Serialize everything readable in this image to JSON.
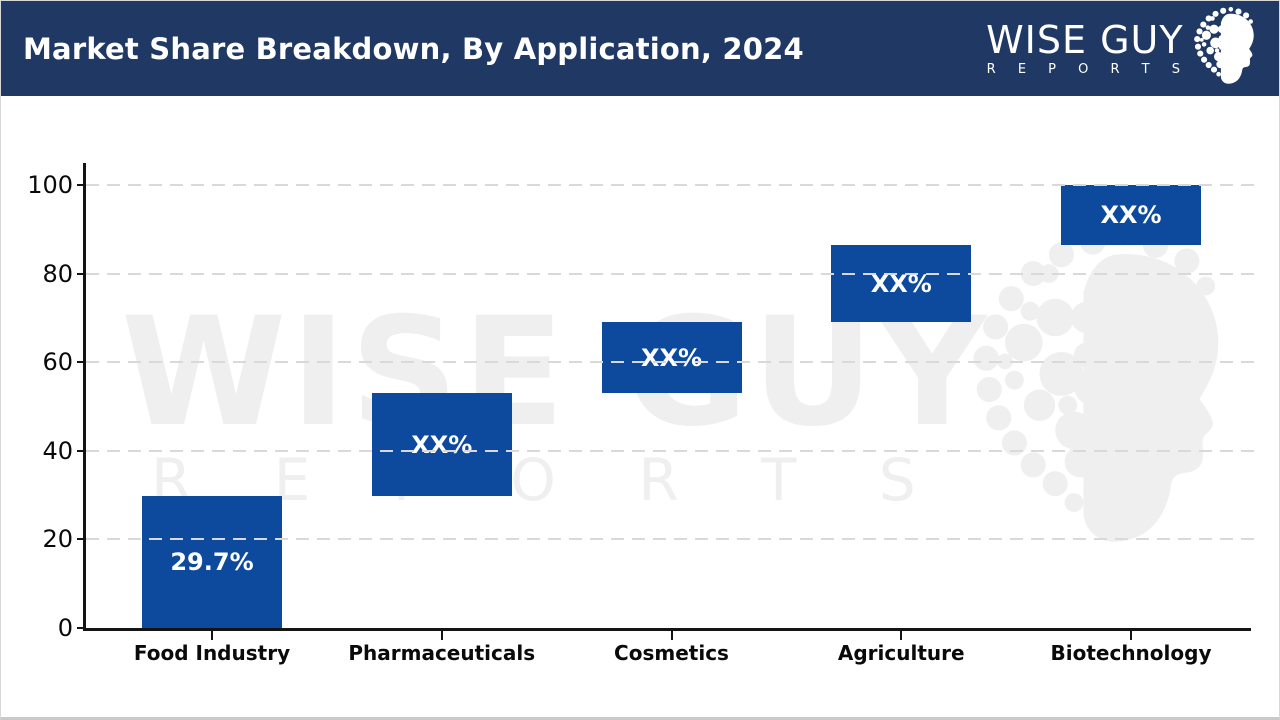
{
  "header": {
    "title": "Market Share Breakdown, By Application, 2024",
    "bg_color": "#1f3864",
    "logo": {
      "line1": "WISE GUY",
      "line2": "R E P O R T S"
    }
  },
  "watermark": {
    "line1": "WISE GUY",
    "line2": "R E P O R T S"
  },
  "chart_data": {
    "type": "bar",
    "subtype": "waterfall",
    "title": "Market Share Breakdown, By Application, 2024",
    "xlabel": "",
    "ylabel": "",
    "categories": [
      "Food Industry",
      "Pharmaceuticals",
      "Cosmetics",
      "Agriculture",
      "Biotechnology"
    ],
    "segments": [
      {
        "category": "Food Industry",
        "start": 0,
        "end": 29.7,
        "value": 29.7,
        "label": "29.7%"
      },
      {
        "category": "Pharmaceuticals",
        "start": 29.7,
        "end": 53,
        "value": 23.3,
        "label": "XX%"
      },
      {
        "category": "Cosmetics",
        "start": 53,
        "end": 69,
        "value": 16,
        "label": "XX%"
      },
      {
        "category": "Agriculture",
        "start": 69,
        "end": 86.5,
        "value": 17.5,
        "label": "XX%"
      },
      {
        "category": "Biotechnology",
        "start": 86.5,
        "end": 100,
        "value": 13.5,
        "label": "XX%"
      }
    ],
    "y_ticks": [
      0,
      20,
      40,
      60,
      80,
      100
    ],
    "ylim": [
      0,
      105
    ],
    "grid": "dashed horizontal gridlines at y ticks",
    "legend": "none",
    "colors": {
      "bar": "#0d4a9e",
      "bar_label": "#ffffff",
      "grid": "#d9d9d9",
      "axis": "#141414",
      "tick_text": "#0a0a0a"
    }
  }
}
